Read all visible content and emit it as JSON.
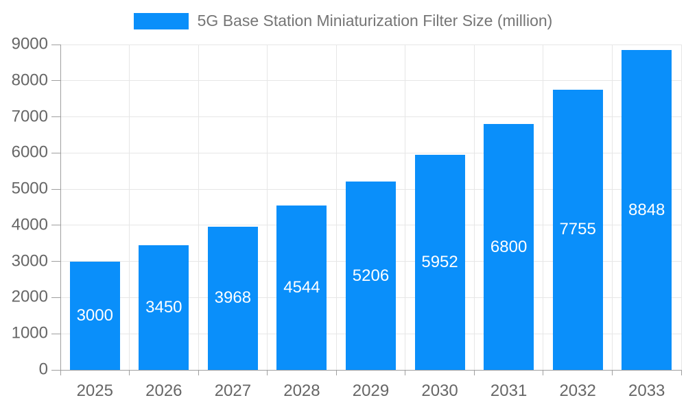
{
  "chart_data": {
    "type": "bar",
    "title": "5G Base Station Miniaturization Filter Size (million)",
    "categories": [
      "2025",
      "2026",
      "2027",
      "2028",
      "2029",
      "2030",
      "2031",
      "2032",
      "2033"
    ],
    "values": [
      3000,
      3450,
      3968,
      4544,
      5206,
      5952,
      6800,
      7755,
      8848
    ],
    "xlabel": "",
    "ylabel": "",
    "ylim": [
      0,
      9000
    ],
    "ytick_step": 1000,
    "yticks": [
      0,
      1000,
      2000,
      3000,
      4000,
      5000,
      6000,
      7000,
      8000,
      9000
    ],
    "grid": true,
    "legend_position": "top-center",
    "bar_color": "#0a8ffa",
    "value_label_color": "#ffffff",
    "axis_text_color": "#666666",
    "legend_text_color": "#757575",
    "grid_color": "#e6e6e6",
    "axis_line_color": "#9e9e9e",
    "background_color": "#ffffff"
  }
}
